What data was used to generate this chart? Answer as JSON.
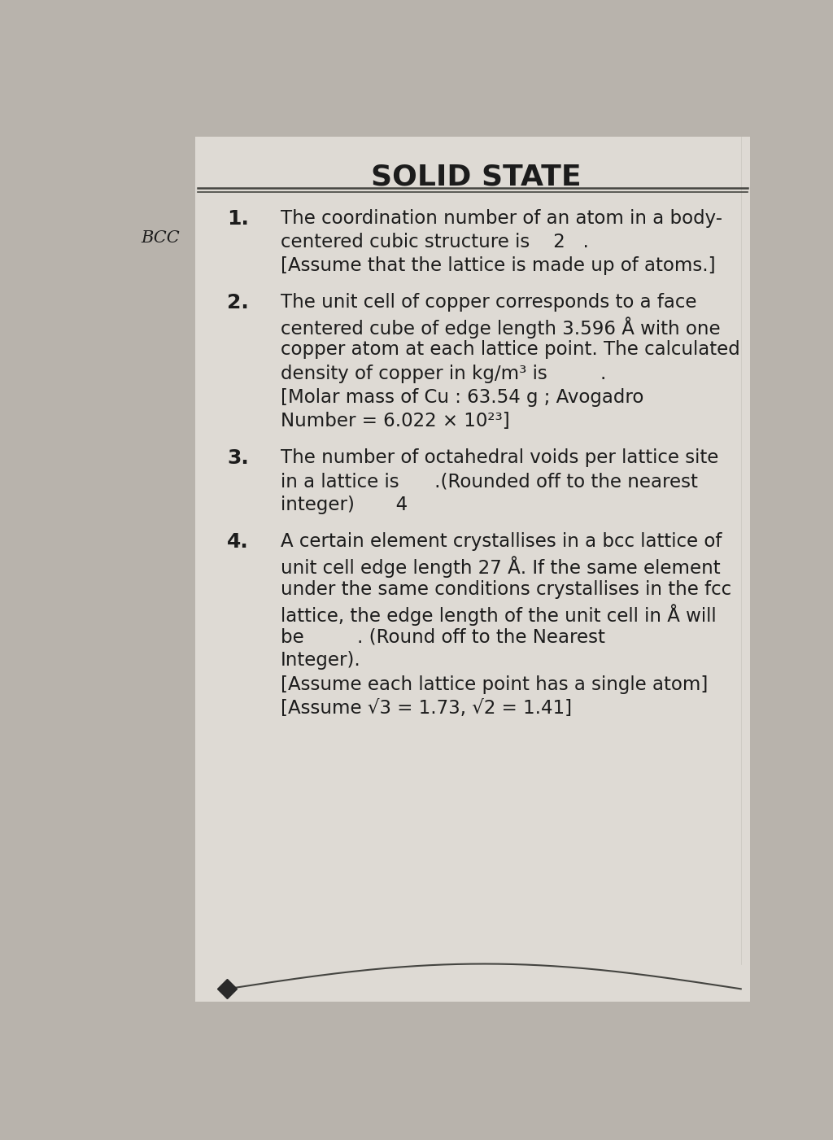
{
  "title": "SOLID STATE",
  "page_bg": "#b8b3ac",
  "content_bg": "#dedad4",
  "text_color": "#1c1c1c",
  "title_fontsize": 26,
  "body_fontsize": 16.5,
  "number_fontsize": 18,
  "q1_lines": [
    "The coordination number of an atom in a body-",
    "centered cubic structure is    2   .",
    "[Assume that the lattice is made up of atoms.]"
  ],
  "q2_lines": [
    "The unit cell of copper corresponds to a face",
    "centered cube of edge length 3.596 Å with one",
    "copper atom at each lattice point. The calculated",
    "density of copper in kg/m³ is         .",
    "[Molar mass of Cu : 63.54 g ; Avogadro",
    "Number = 6.022 × 10²³]"
  ],
  "q3_lines": [
    "The number of octahedral voids per lattice site",
    "in a lattice is      .(Rounded off to the nearest",
    "integer)       4"
  ],
  "q4_lines": [
    "A certain element crystallises in a bcc lattice of",
    "unit cell edge length 27 Å. If the same element",
    "under the same conditions crystallises in the fcc",
    "lattice, the edge length of the unit cell in Å will",
    "be         . (Round off to the Nearest",
    "Integer).",
    "[Assume each lattice point has a single atom]",
    "[Assume √3 = 1.73, √2 = 1.41]"
  ],
  "margin_bcc": "BCC",
  "left_border_color": "#888880",
  "line_color": "#555550"
}
